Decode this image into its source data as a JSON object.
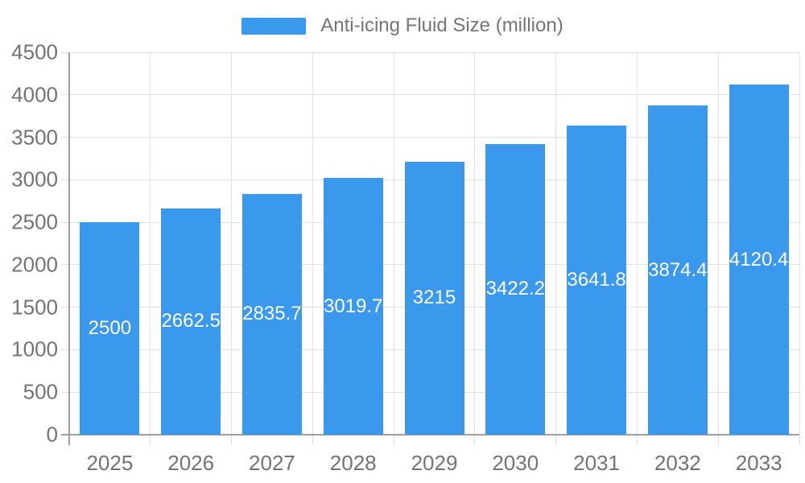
{
  "legend": {
    "label": "Anti-icing Fluid Size (million)"
  },
  "colors": {
    "bar": "#3a99ec",
    "grid": "#e2e2e2",
    "axis": "#a0a0a0",
    "tick": "#dddddd",
    "axis_text": "#737373",
    "legend_text": "#757575",
    "value_label": "#ffffff",
    "background": "#ffffff"
  },
  "chart_data": {
    "type": "bar",
    "title": "",
    "xlabel": "",
    "ylabel": "",
    "categories": [
      "2025",
      "2026",
      "2027",
      "2028",
      "2029",
      "2030",
      "2031",
      "2032",
      "2033"
    ],
    "series": [
      {
        "name": "Anti-icing Fluid Size (million)",
        "values": [
          2500,
          2662.5,
          2835.7,
          3019.7,
          3215,
          3422.2,
          3641.8,
          3874.4,
          4120.4
        ]
      }
    ],
    "value_labels": [
      "2500",
      "2662.5",
      "2835.7",
      "3019.7",
      "3215",
      "3422.2",
      "3641.8",
      "3874.4",
      "4120.4"
    ],
    "ylim": [
      0,
      4500
    ],
    "ytick_step": 500,
    "ytick_labels": [
      "0",
      "500",
      "1000",
      "1500",
      "2000",
      "2500",
      "3000",
      "3500",
      "4000",
      "4500"
    ],
    "grid": true,
    "legend_position": "top",
    "value_label_position": "inside-center"
  }
}
